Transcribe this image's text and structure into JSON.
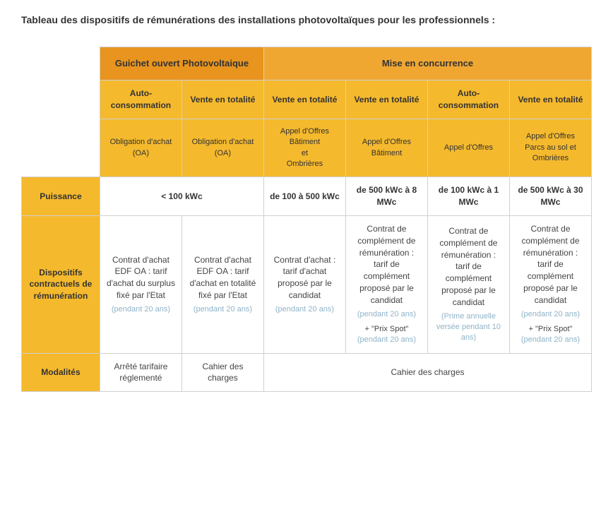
{
  "title": "Tableau des dispositifs de rémunérations des installations photovoltaïques pour les professionnels :",
  "colors": {
    "group1_bg": "#e8941e",
    "group2_bg": "#f0a732",
    "sub_bg": "#f5b92d",
    "label_bg": "#f5b92d",
    "border": "#d0d0d0",
    "muted_text": "#8fb3c9"
  },
  "groupHeaders": {
    "g1": "Guichet ouvert Photovoltaique",
    "g2": "Mise en concurrence"
  },
  "subHeaders": {
    "c1": "Auto-consommation",
    "c2": "Vente en totalité",
    "c3": "Vente en totalité",
    "c4": "Vente en totalité",
    "c5": "Auto-consommation",
    "c6": "Vente en totalité"
  },
  "subDesc": {
    "c1": "Obligation d'achat (OA)",
    "c2": "Obligation d'achat (OA)",
    "c3": "Appel d'Offres Bâtiment\net\nOmbrières",
    "c4": "Appel d'Offres Bâtiment",
    "c5": "Appel d'Offres",
    "c6": "Appel d'Offres Parcs au sol et Ombrières"
  },
  "rowLabels": {
    "power": "Puissance",
    "contracts": "Dispositifs contractuels de rémunération",
    "modal": "Modalités"
  },
  "power": {
    "c12": "< 100 kWc",
    "c3": "de 100 à 500 kWc",
    "c4": "de 500 kWc à 8 MWc",
    "c5": "de 100 kWc à 1 MWc",
    "c6": "de 500 kWc à 30 MWc"
  },
  "contracts": {
    "c1_text": "Contrat d'achat EDF OA : tarif d'achat du surplus fixé par l'Etat",
    "c1_note": "(pendant 20 ans)",
    "c2_text": "Contrat d'achat EDF OA : tarif d'achat en totalité fixé par l'Etat",
    "c2_note": "(pendant 20 ans)",
    "c3_text": "Contrat d'achat : tarif d'achat proposé par le candidat",
    "c3_note": "(pendant 20 ans)",
    "c4_text": "Contrat de complément de rémunération : tarif de complément proposé par le candidat",
    "c4_note": "(pendant 20 ans)",
    "c4_plus_a": "+ \"Prix Spot\"",
    "c4_plus_b": "(pendant 20 ans)",
    "c5_text": "Contrat de complément de rémunération : tarif de complément proposé par le candidat",
    "c5_note": "(Prime annuelle versée pendant 10 ans)",
    "c6_text": "Contrat de complément de rémunération : tarif de complément proposé par le candidat",
    "c6_note": "(pendant 20 ans)",
    "c6_plus_a": "+ \"Prix Spot\"",
    "c6_plus_b": "(pendant 20 ans)"
  },
  "modal": {
    "c1": "Arrêté tarifaire réglementé",
    "c2": "Cahier des charges",
    "c3456": "Cahier des charges"
  }
}
